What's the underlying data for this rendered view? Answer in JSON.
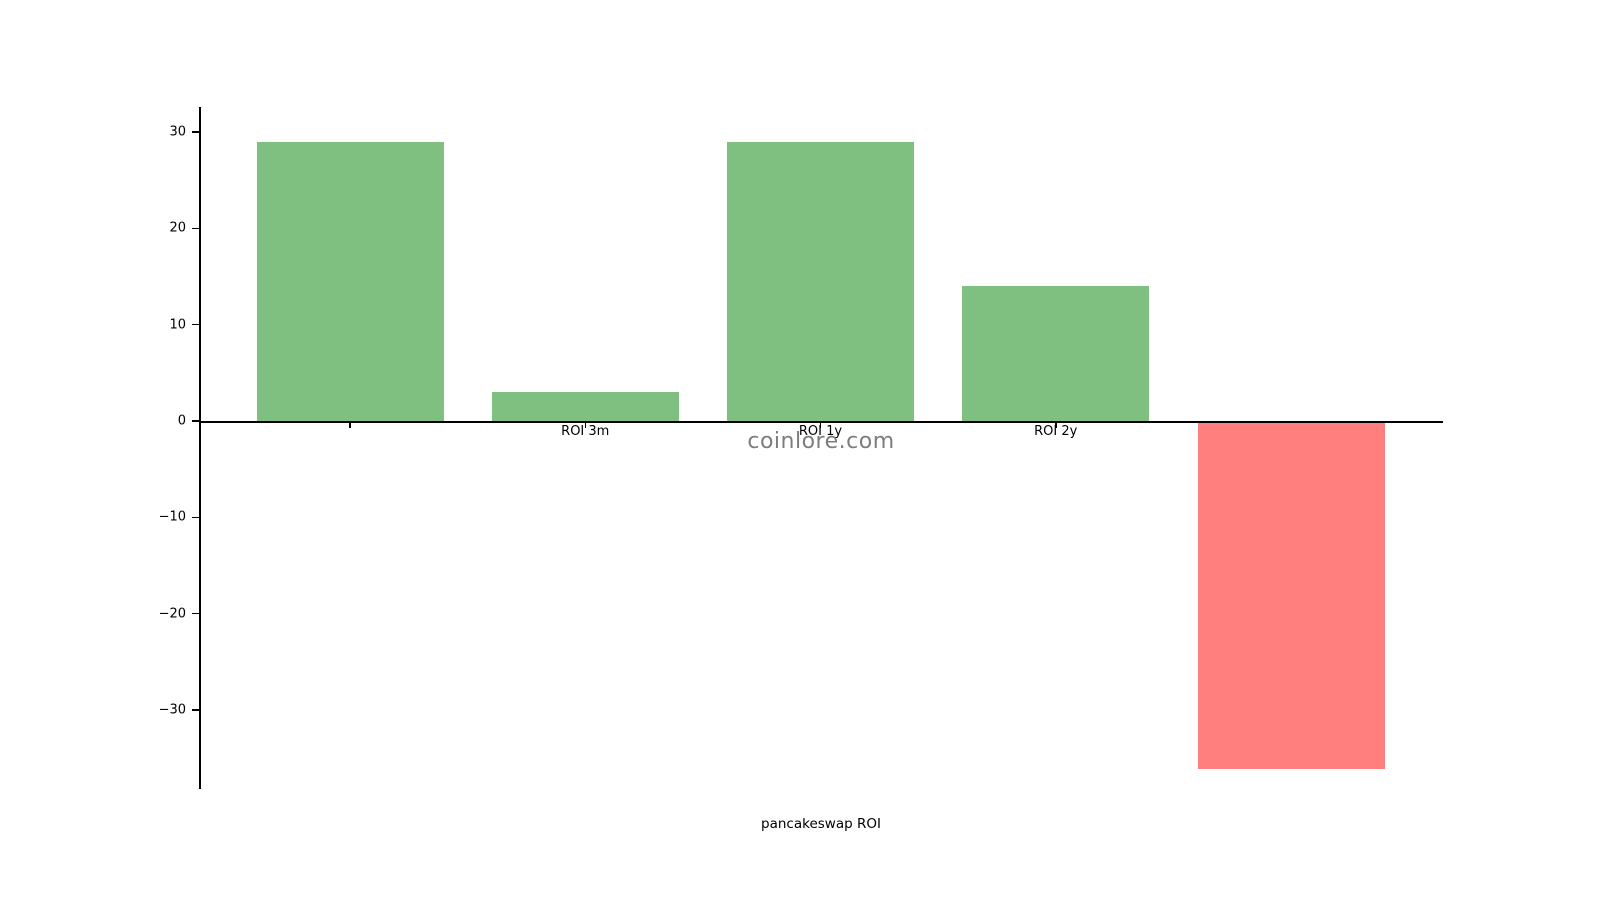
{
  "title": "pancakeswap ROI",
  "watermark": {
    "text": "coinlore.com",
    "color": "#7d7d7d"
  },
  "chart_data": {
    "type": "bar",
    "categories": [
      "",
      "ROI 3m",
      "ROI 1y",
      "ROI 2y",
      ""
    ],
    "values": [
      29,
      3,
      29,
      14,
      -36
    ],
    "title": "pancakeswap ROI",
    "xlabel": "",
    "ylabel": "",
    "yticks": [
      30,
      20,
      10,
      0,
      -10,
      -20,
      -30
    ],
    "ylim": [
      -38.2,
      32.6
    ],
    "grid": false,
    "legend": false,
    "colors": {
      "positive": "#7fbf7f",
      "negative": "#ff7f7f",
      "axis": "#000000",
      "tick_label": "#000000"
    }
  }
}
